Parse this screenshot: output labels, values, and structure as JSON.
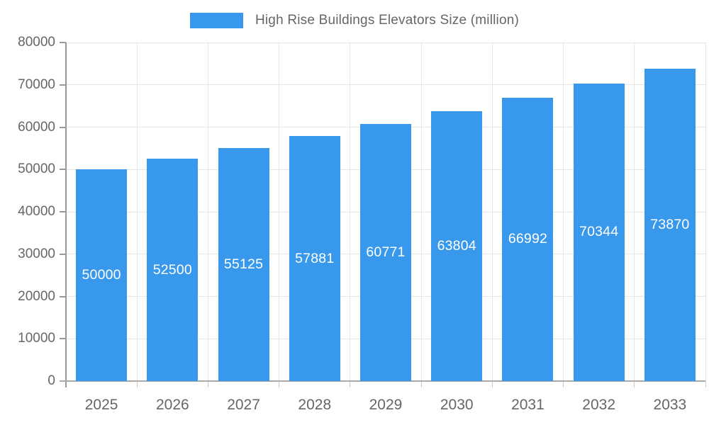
{
  "chart_data": {
    "type": "bar",
    "title": "High Rise Buildings Elevators Size (million)",
    "categories": [
      "2025",
      "2026",
      "2027",
      "2028",
      "2029",
      "2030",
      "2031",
      "2032",
      "2033"
    ],
    "values": [
      50000,
      52500,
      55125,
      57881,
      60771,
      63804,
      66992,
      70344,
      73870
    ],
    "xlabel": "",
    "ylabel": "",
    "ylim": [
      0,
      80000
    ],
    "ytick_interval": 10000,
    "ytick_labels": [
      "0",
      "10000",
      "20000",
      "30000",
      "40000",
      "50000",
      "60000",
      "70000",
      "80000"
    ],
    "grid": true,
    "legend_position": "top-center",
    "bar_labels_inside": true,
    "colors": {
      "bar": "#3898EC",
      "bar_value_label": "#ffffff",
      "gridline": "#e6e6e6",
      "axis_line": "#999999",
      "tick_label": "#666666",
      "legend_text": "#666666",
      "background": "#ffffff"
    }
  }
}
